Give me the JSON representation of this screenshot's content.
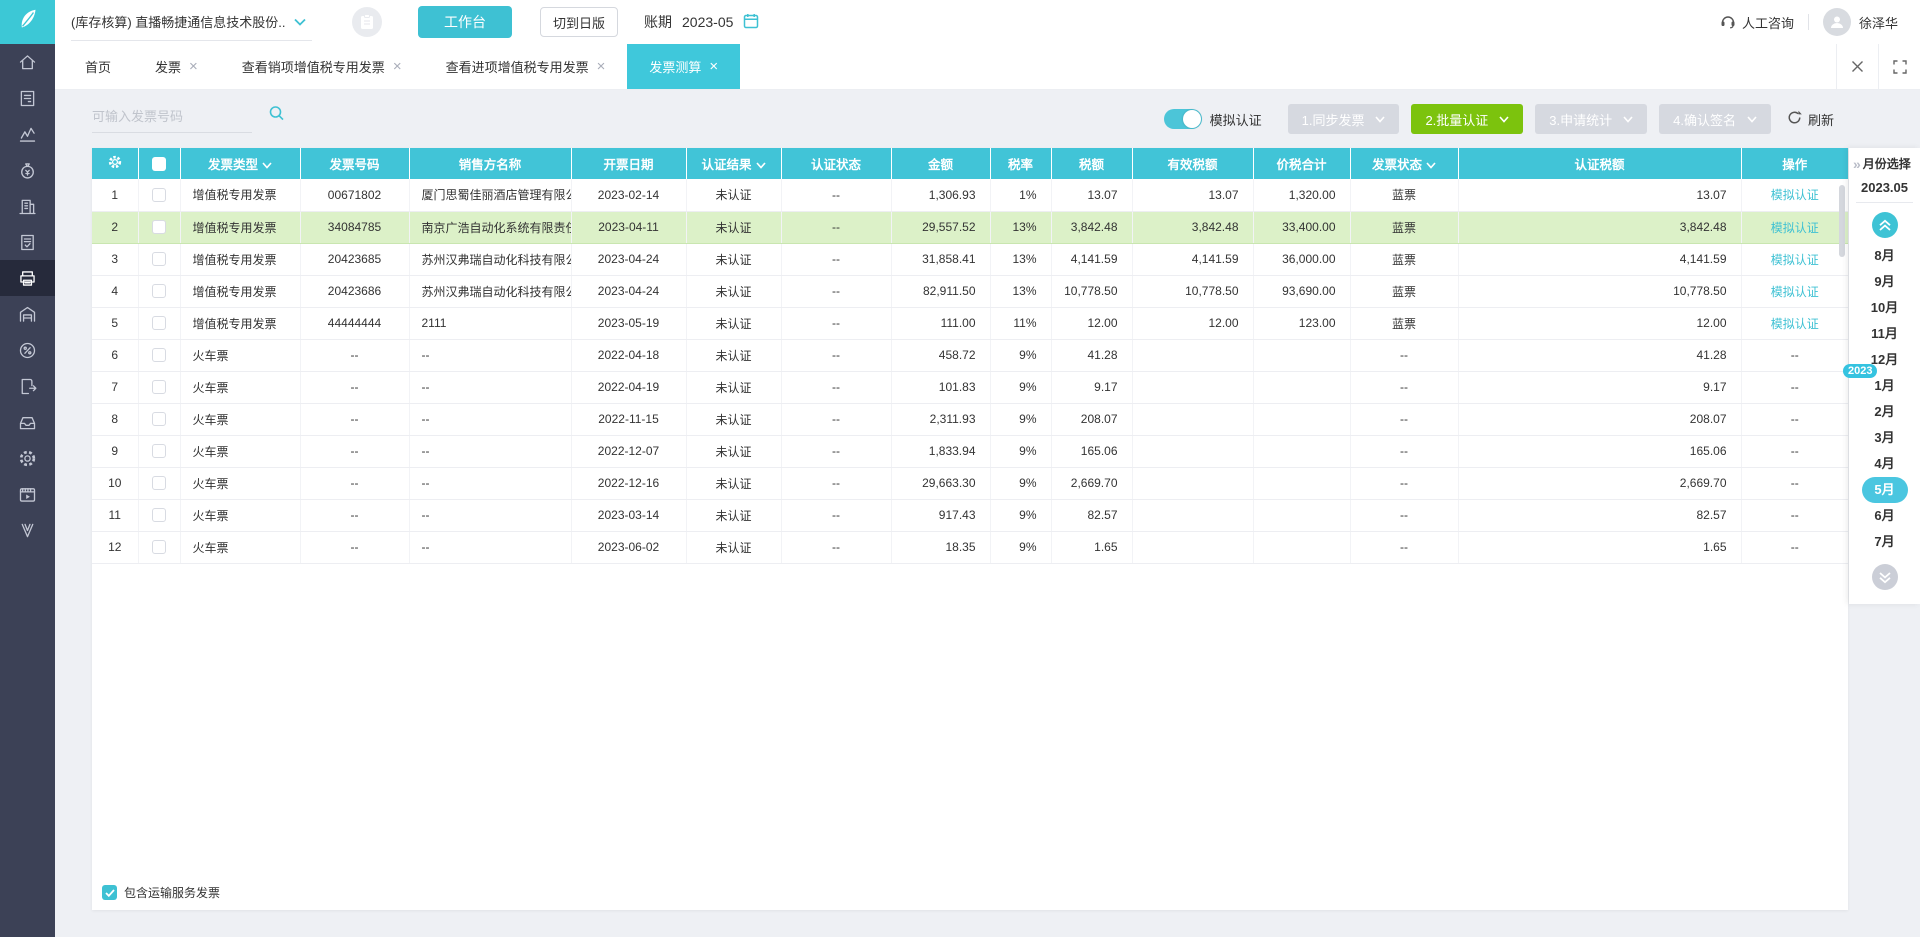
{
  "colors": {
    "brand_teal": "#3EC1D3",
    "tab_active": "#3FC8DB",
    "table_header": "#41C4D7",
    "green_button": "#7CC30D",
    "highlight_row": "#DCF1C8",
    "sidebar_bg": "#3C4156",
    "page_bg": "#EEF0F4"
  },
  "icons": {
    "close_glyph": "×",
    "collapse_glyph": "»"
  },
  "topbar": {
    "company": "(库存核算) 直播畅捷通信息技术股份...",
    "workbench": "工作台",
    "switch_version": "切到日版",
    "period_label": "账期",
    "period_value": "2023-05",
    "support": "人工咨询",
    "username": "徐泽华"
  },
  "tabs": [
    {
      "label": "首页",
      "closable": false,
      "active": false
    },
    {
      "label": "发票",
      "closable": true,
      "active": false
    },
    {
      "label": "查看销项增值税专用发票",
      "closable": true,
      "active": false
    },
    {
      "label": "查看进项增值税专用发票",
      "closable": true,
      "active": false
    },
    {
      "label": "发票测算",
      "closable": true,
      "active": true
    }
  ],
  "toolbar": {
    "search_placeholder": "可输入发票号码",
    "simulate_toggle": {
      "label": "模拟认证",
      "on": true
    },
    "actions": [
      {
        "label": "1.同步发票",
        "style": "grey"
      },
      {
        "label": "2.批量认证",
        "style": "green"
      },
      {
        "label": "3.申请统计",
        "style": "grey"
      },
      {
        "label": "4.确认签名",
        "style": "grey"
      }
    ],
    "refresh": "刷新"
  },
  "table": {
    "headers": [
      {
        "type": "gear"
      },
      {
        "type": "checkbox"
      },
      {
        "label": "发票类型",
        "sortable": true
      },
      {
        "label": "发票号码"
      },
      {
        "label": "销售方名称"
      },
      {
        "label": "开票日期"
      },
      {
        "label": "认证结果",
        "sortable": true
      },
      {
        "label": "认证状态"
      },
      {
        "label": "金额"
      },
      {
        "label": "税率"
      },
      {
        "label": "税额"
      },
      {
        "label": "有效税额"
      },
      {
        "label": "价税合计"
      },
      {
        "label": "发票状态",
        "sortable": true
      },
      {
        "label": "认证税额"
      },
      {
        "label": "操作"
      }
    ],
    "rows": [
      {
        "idx": 1,
        "type": "增值税专用发票",
        "number": "00671802",
        "seller": "厦门思蜀佳丽酒店管理有限公",
        "date": "2023-02-14",
        "result": "未认证",
        "status": "--",
        "amount": "1,306.93",
        "rate": "1%",
        "tax": "13.07",
        "valid_tax": "13.07",
        "total": "1,320.00",
        "state": "蓝票",
        "cert_tax": "13.07",
        "action": "模拟认证",
        "highlighted": false
      },
      {
        "idx": 2,
        "type": "增值税专用发票",
        "number": "34084785",
        "seller": "南京广浩自动化系统有限责任",
        "date": "2023-04-11",
        "result": "未认证",
        "status": "--",
        "amount": "29,557.52",
        "rate": "13%",
        "tax": "3,842.48",
        "valid_tax": "3,842.48",
        "total": "33,400.00",
        "state": "蓝票",
        "cert_tax": "3,842.48",
        "action": "模拟认证",
        "highlighted": true
      },
      {
        "idx": 3,
        "type": "增值税专用发票",
        "number": "20423685",
        "seller": "苏州汉弗瑞自动化科技有限公",
        "date": "2023-04-24",
        "result": "未认证",
        "status": "--",
        "amount": "31,858.41",
        "rate": "13%",
        "tax": "4,141.59",
        "valid_tax": "4,141.59",
        "total": "36,000.00",
        "state": "蓝票",
        "cert_tax": "4,141.59",
        "action": "模拟认证",
        "highlighted": false
      },
      {
        "idx": 4,
        "type": "增值税专用发票",
        "number": "20423686",
        "seller": "苏州汉弗瑞自动化科技有限公",
        "date": "2023-04-24",
        "result": "未认证",
        "status": "--",
        "amount": "82,911.50",
        "rate": "13%",
        "tax": "10,778.50",
        "valid_tax": "10,778.50",
        "total": "93,690.00",
        "state": "蓝票",
        "cert_tax": "10,778.50",
        "action": "模拟认证",
        "highlighted": false
      },
      {
        "idx": 5,
        "type": "增值税专用发票",
        "number": "44444444",
        "seller": "2111",
        "date": "2023-05-19",
        "result": "未认证",
        "status": "--",
        "amount": "111.00",
        "rate": "11%",
        "tax": "12.00",
        "valid_tax": "12.00",
        "total": "123.00",
        "state": "蓝票",
        "cert_tax": "12.00",
        "action": "模拟认证",
        "highlighted": false
      },
      {
        "idx": 6,
        "type": "火车票",
        "number": "--",
        "seller": "--",
        "date": "2022-04-18",
        "result": "未认证",
        "status": "--",
        "amount": "458.72",
        "rate": "9%",
        "tax": "41.28",
        "valid_tax": "",
        "total": "",
        "state": "--",
        "cert_tax": "41.28",
        "action": "--",
        "highlighted": false
      },
      {
        "idx": 7,
        "type": "火车票",
        "number": "--",
        "seller": "--",
        "date": "2022-04-19",
        "result": "未认证",
        "status": "--",
        "amount": "101.83",
        "rate": "9%",
        "tax": "9.17",
        "valid_tax": "",
        "total": "",
        "state": "--",
        "cert_tax": "9.17",
        "action": "--",
        "highlighted": false
      },
      {
        "idx": 8,
        "type": "火车票",
        "number": "--",
        "seller": "--",
        "date": "2022-11-15",
        "result": "未认证",
        "status": "--",
        "amount": "2,311.93",
        "rate": "9%",
        "tax": "208.07",
        "valid_tax": "",
        "total": "",
        "state": "--",
        "cert_tax": "208.07",
        "action": "--",
        "highlighted": false
      },
      {
        "idx": 9,
        "type": "火车票",
        "number": "--",
        "seller": "--",
        "date": "2022-12-07",
        "result": "未认证",
        "status": "--",
        "amount": "1,833.94",
        "rate": "9%",
        "tax": "165.06",
        "valid_tax": "",
        "total": "",
        "state": "--",
        "cert_tax": "165.06",
        "action": "--",
        "highlighted": false
      },
      {
        "idx": 10,
        "type": "火车票",
        "number": "--",
        "seller": "--",
        "date": "2022-12-16",
        "result": "未认证",
        "status": "--",
        "amount": "29,663.30",
        "rate": "9%",
        "tax": "2,669.70",
        "valid_tax": "",
        "total": "",
        "state": "--",
        "cert_tax": "2,669.70",
        "action": "--",
        "highlighted": false
      },
      {
        "idx": 11,
        "type": "火车票",
        "number": "--",
        "seller": "--",
        "date": "2023-03-14",
        "result": "未认证",
        "status": "--",
        "amount": "917.43",
        "rate": "9%",
        "tax": "82.57",
        "valid_tax": "",
        "total": "",
        "state": "--",
        "cert_tax": "82.57",
        "action": "--",
        "highlighted": false
      },
      {
        "idx": 12,
        "type": "火车票",
        "number": "--",
        "seller": "--",
        "date": "2023-06-02",
        "result": "未认证",
        "status": "--",
        "amount": "18.35",
        "rate": "9%",
        "tax": "1.65",
        "valid_tax": "",
        "total": "",
        "state": "--",
        "cert_tax": "1.65",
        "action": "--",
        "highlighted": false
      }
    ]
  },
  "month_panel": {
    "title": "月份选择",
    "period": "2023.05",
    "selected": "5月",
    "months": [
      {
        "label": "8月"
      },
      {
        "label": "9月"
      },
      {
        "label": "10月"
      },
      {
        "label": "11月"
      },
      {
        "label": "12月"
      },
      {
        "label": "1月",
        "year_badge": "2023"
      },
      {
        "label": "2月"
      },
      {
        "label": "3月"
      },
      {
        "label": "4月"
      },
      {
        "label": "5月"
      },
      {
        "label": "6月"
      },
      {
        "label": "7月"
      }
    ]
  },
  "footer": {
    "transport_checkbox": "包含运输服务发票",
    "checked": true
  },
  "sidebar": {
    "items": [
      {
        "icon": "home"
      },
      {
        "icon": "invoice-bill"
      },
      {
        "icon": "trend-chart"
      },
      {
        "icon": "money-bag"
      },
      {
        "icon": "company-building"
      },
      {
        "icon": "report-audit"
      },
      {
        "icon": "invoice-machine",
        "active": true
      },
      {
        "icon": "warehouse"
      },
      {
        "icon": "tax-service"
      },
      {
        "icon": "ledger-export"
      },
      {
        "icon": "inbox-archive"
      },
      {
        "icon": "settings-gear"
      },
      {
        "icon": "video-tutorial"
      },
      {
        "icon": "v-logo"
      }
    ]
  }
}
